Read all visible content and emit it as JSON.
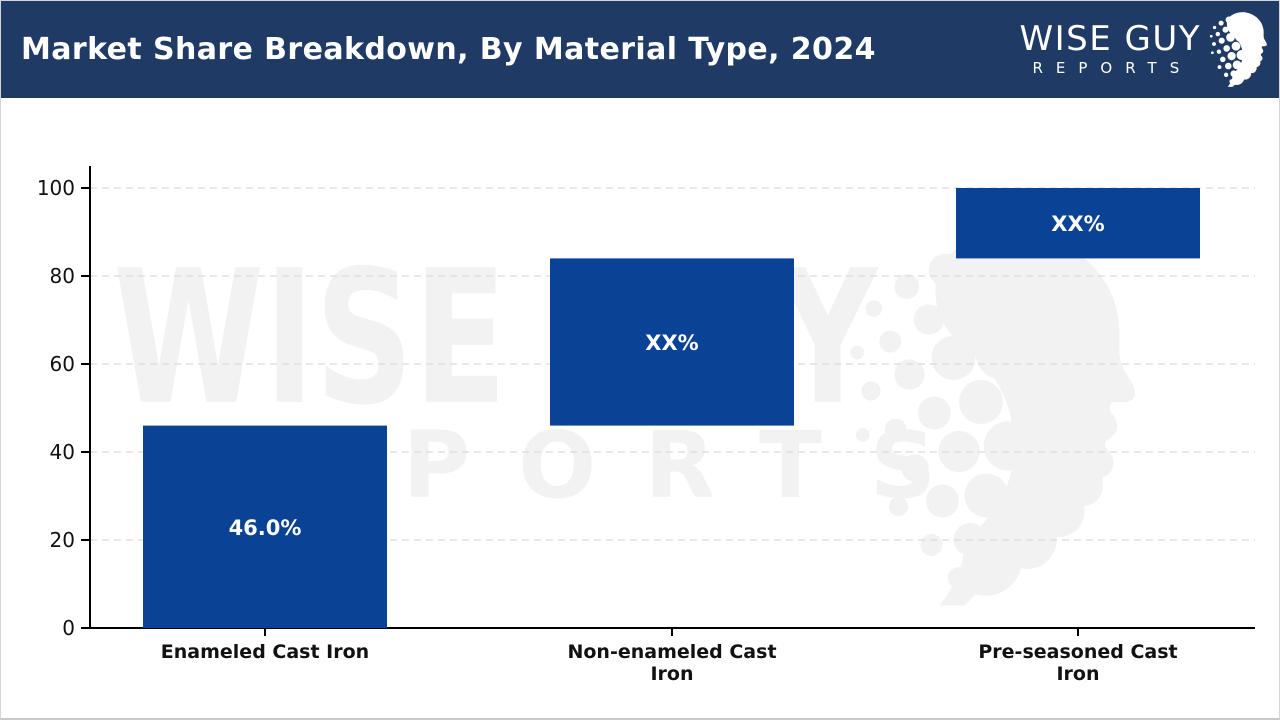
{
  "header": {
    "title": "Market Share Breakdown, By Material Type, 2024",
    "bg_color": "#203a66",
    "text_color": "#ffffff",
    "logo": {
      "brand_line1": "WISE GUY",
      "brand_line2": "REPORTS",
      "icon": "dotted-face-profile-icon"
    }
  },
  "watermark": {
    "line1": "WISE GUY",
    "line2": "REPORTS",
    "icon": "dotted-face-profile-icon",
    "color": "#f2f2f2"
  },
  "chart_data": {
    "type": "bar",
    "subtype": "floating-waterfall",
    "title": "Market Share Breakdown, By Material Type, 2024",
    "categories": [
      "Enameled Cast Iron",
      "Non-enameled Cast Iron",
      "Pre-seasoned Cast Iron"
    ],
    "category_lines": [
      [
        "Enameled Cast Iron"
      ],
      [
        "Non-enameled Cast",
        "Iron"
      ],
      [
        "Pre-seasoned Cast",
        "Iron"
      ]
    ],
    "series": [
      {
        "name": "Market share (%)",
        "segments": [
          {
            "category": "Enameled Cast Iron",
            "start": 0,
            "end": 46,
            "span": 46.0,
            "label": "46.0%"
          },
          {
            "category": "Non-enameled Cast Iron",
            "start": 46,
            "end": 84,
            "span": 38.0,
            "label": "XX%"
          },
          {
            "category": "Pre-seasoned Cast Iron",
            "start": 84,
            "end": 100,
            "span": 16.0,
            "label": "XX%"
          }
        ]
      }
    ],
    "xlabel": "",
    "ylabel": "",
    "yticks": [
      0,
      20,
      40,
      60,
      80,
      100
    ],
    "ylim": [
      0,
      105
    ],
    "grid": "horizontal-dashed",
    "legend": "none",
    "bar_color": "#0a4296",
    "bar_label_color": "#ffffff",
    "axis_color": "#000000",
    "gridline_color": "#e0e0e0",
    "tick_label_color": "#111111"
  }
}
